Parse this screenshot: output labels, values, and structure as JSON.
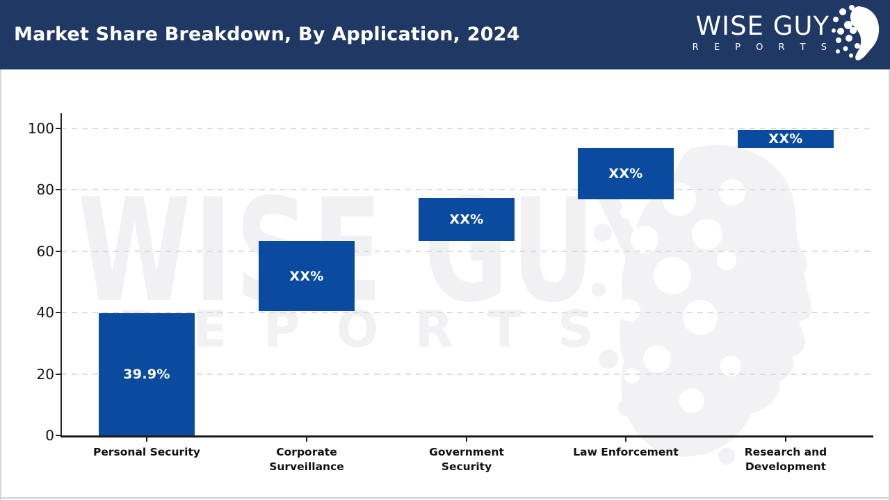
{
  "header": {
    "title": "Market Share Breakdown, By Application, 2024",
    "bg_color": "#1F3864",
    "logo": {
      "line1": "WISE GUY",
      "line2": "R E P O R T S"
    }
  },
  "watermark": {
    "line1": "WISE GUY",
    "line2": "REPORTS"
  },
  "chart_data": {
    "type": "bar",
    "variant": "waterfall",
    "title": "Market Share Breakdown, By Application, 2024",
    "categories": [
      "Personal Security",
      "Corporate Surveillance",
      "Government Security",
      "Law Enforcement",
      "Research and Development"
    ],
    "categories_display": [
      "Personal Security",
      "Corporate\nSurveillance",
      "Government\nSecurity",
      "Law Enforcement",
      "Research and\nDevelopment"
    ],
    "segments": [
      {
        "category": "Personal Security",
        "start": 0,
        "end": 39.9,
        "label": "39.9%"
      },
      {
        "category": "Corporate Surveillance",
        "start": 40.4,
        "end": 63.4,
        "label": "XX%"
      },
      {
        "category": "Government Security",
        "start": 63.4,
        "end": 77.4,
        "label": "XX%"
      },
      {
        "category": "Law Enforcement",
        "start": 77.0,
        "end": 93.7,
        "label": "XX%"
      },
      {
        "category": "Research and Development",
        "start": 93.7,
        "end": 99.6,
        "label": "XX%"
      }
    ],
    "bar_labels": [
      "39.9%",
      "XX%",
      "XX%",
      "XX%",
      "XX%"
    ],
    "xlabel": "",
    "ylabel": "",
    "ylim": [
      0,
      105
    ],
    "yticks": [
      0,
      20,
      40,
      60,
      80,
      100
    ],
    "grid": "horizontal-dashed",
    "legend": "none",
    "bar_color": "#0B4B9F",
    "value_label_color": "#ffffff"
  }
}
